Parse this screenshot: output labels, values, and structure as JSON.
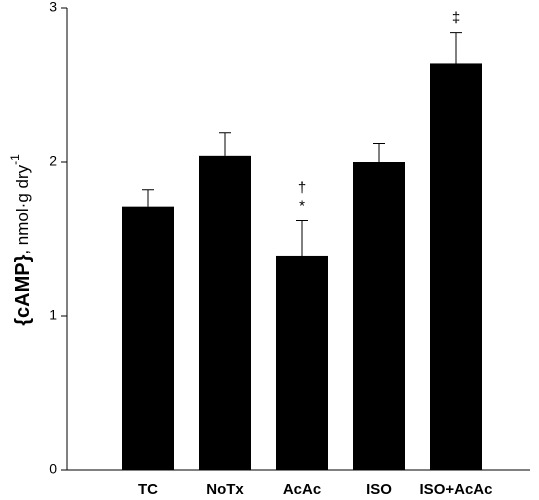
{
  "chart_data": {
    "type": "bar",
    "ylabel": {
      "main": "{cAMP}",
      "unit": ", nmol·g dry",
      "exponent": "-1"
    },
    "categories": [
      "TC",
      "NoTx",
      "AcAc",
      "ISO",
      "ISO+AcAc"
    ],
    "values": [
      1.71,
      2.04,
      1.39,
      2.0,
      2.64
    ],
    "errors": [
      0.11,
      0.15,
      0.23,
      0.12,
      0.2
    ],
    "annotations": [
      null,
      null,
      [
        "†",
        "*"
      ],
      null,
      [
        "‡"
      ]
    ],
    "color": "#000000",
    "ylim": [
      0,
      3
    ],
    "yticks": [
      0,
      1,
      2,
      3
    ],
    "grid": false
  }
}
